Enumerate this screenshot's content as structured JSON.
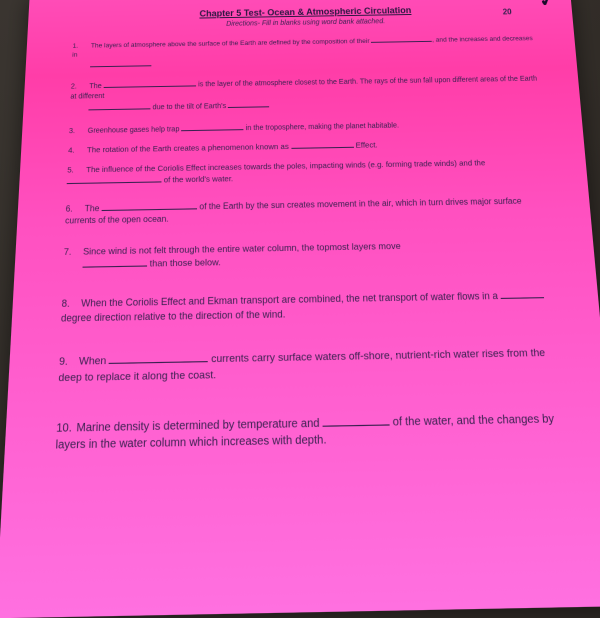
{
  "document": {
    "title": "Chapter 5 Test- Ocean & Atmospheric Circulation",
    "directions": "Directions- Fill in blanks using word bank attached.",
    "score": "20",
    "background_color": "#ff4db8",
    "text_color": "#3a2050",
    "questions": [
      {
        "num": "1.",
        "text_parts": [
          "The layers of atmosphere above the surface of the Earth are defined by the composition of their ",
          ", and the increases and decreases in"
        ]
      },
      {
        "num": "2.",
        "text_parts": [
          "The ",
          " is the layer of the atmosphere closest to the Earth. The rays of the sun fall upon different areas of the Earth at different ",
          " due to the tilt of Earth's "
        ]
      },
      {
        "num": "3.",
        "text_parts": [
          "Greenhouse gases help trap ",
          " in the troposphere, making the planet habitable."
        ]
      },
      {
        "num": "4.",
        "text_parts": [
          "The rotation of the Earth creates a phenomenon known as ",
          " Effect."
        ]
      },
      {
        "num": "5.",
        "text_parts": [
          "The influence of the Coriolis Effect increases towards the poles, impacting winds (e.g. forming trade winds) and the ",
          " of the world's water."
        ]
      },
      {
        "num": "6.",
        "text_parts": [
          "The ",
          " of the Earth by the sun creates movement in the air, which in turn drives major surface currents of the open ocean."
        ]
      },
      {
        "num": "7.",
        "text_parts": [
          "Since wind is not felt through the entire water column, the topmost layers move ",
          " than those below."
        ]
      },
      {
        "num": "8.",
        "text_parts": [
          "When the Coriolis Effect and Ekman transport are combined, the net transport of water flows in a ",
          " degree direction relative to the direction of the wind."
        ]
      },
      {
        "num": "9.",
        "text_parts": [
          "When ",
          " currents carry surface waters off-shore, nutrient-rich water rises from the deep to replace it along the coast."
        ]
      },
      {
        "num": "10.",
        "text_parts": [
          "Marine density is determined by temperature and ",
          " of the water, and the changes by layers in the water column which increases with depth."
        ]
      }
    ]
  }
}
